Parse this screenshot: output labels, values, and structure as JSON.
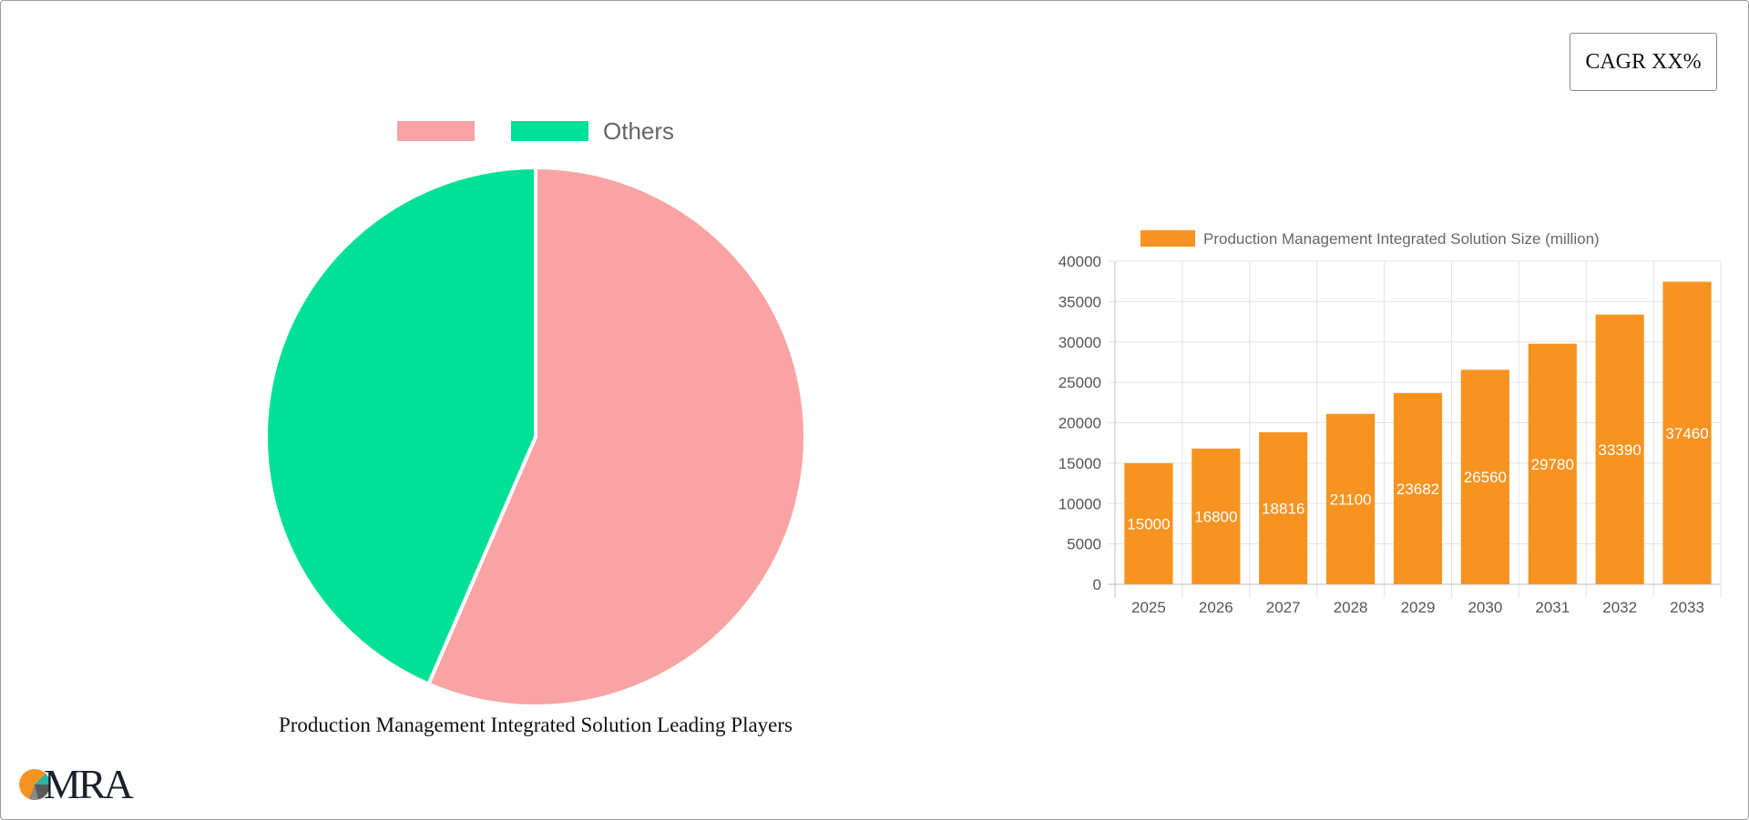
{
  "badge": {
    "cagr_label": "CAGR XX%"
  },
  "logo": {
    "text": "MRA"
  },
  "colors": {
    "pie_top_player": "#f9a3a4",
    "pie_others": "#00e096",
    "bar": "#f79421",
    "logo_orange": "#f79421",
    "logo_teal": "#2bb5a8",
    "logo_gray": "#5a5a5a"
  },
  "chart_data": [
    {
      "type": "pie",
      "title": "Production Management Integrated Solution Leading Players",
      "legend": {
        "position": "top",
        "entries": [
          "",
          "Others"
        ]
      },
      "slices": [
        {
          "label": "",
          "value": 56.5
        },
        {
          "label": "Others",
          "value": 43.5
        }
      ]
    },
    {
      "type": "bar",
      "legend": {
        "position": "top",
        "entries": [
          "Production Management Integrated Solution Size (million)"
        ]
      },
      "categories": [
        "2025",
        "2026",
        "2027",
        "2028",
        "2029",
        "2030",
        "2031",
        "2032",
        "2033"
      ],
      "series": [
        {
          "name": "Production Management Integrated Solution Size (million)",
          "values": [
            15000,
            16800,
            18816,
            21100,
            23682,
            26560,
            29780,
            33390,
            37460
          ]
        }
      ],
      "ylim": [
        0,
        40000
      ],
      "yticks": [
        0,
        5000,
        10000,
        15000,
        20000,
        25000,
        30000,
        35000,
        40000
      ],
      "grid": true,
      "data_labels": true
    }
  ]
}
